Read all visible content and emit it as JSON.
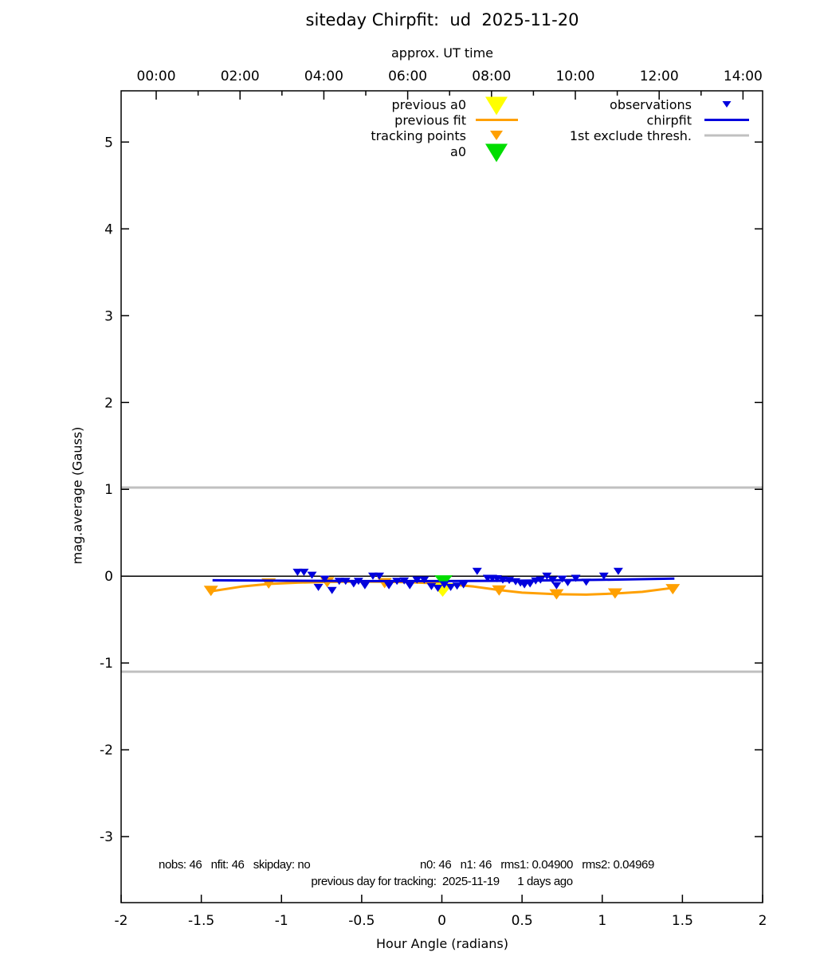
{
  "figure": {
    "title": "siteday Chirpfit:  ud  2025-11-20",
    "stats_line1_left": "nobs: 46   nfit: 46   skipday: no",
    "stats_line1_right": "n0: 46   n1: 46   rms1: 0.04900   rms2: 0.04969",
    "stats_line2": "previous day for tracking:  2025-11-19      1 days ago"
  },
  "chart_data": {
    "type": "scatter",
    "title": "siteday Chirpfit:  ud  2025-11-20",
    "xlabel": "Hour Angle (radians)",
    "ylabel": "mag.average (Gauss)",
    "x2label": "approx. UT time",
    "xlim": [
      -2,
      2
    ],
    "ylim": [
      -3.76,
      5.59
    ],
    "x2lim_hours": [
      -0.837,
      14.468
    ],
    "grid": false,
    "x_ticks": [
      {
        "v": -2,
        "label": "-2"
      },
      {
        "v": -1.5,
        "label": "-1.5"
      },
      {
        "v": -1,
        "label": "-1"
      },
      {
        "v": -0.5,
        "label": "-0.5"
      },
      {
        "v": 0,
        "label": "0"
      },
      {
        "v": 0.5,
        "label": "0.5"
      },
      {
        "v": 1,
        "label": "1"
      },
      {
        "v": 1.5,
        "label": "1.5"
      },
      {
        "v": 2,
        "label": "2"
      }
    ],
    "y_ticks": [
      {
        "v": -3,
        "label": "-3"
      },
      {
        "v": -2,
        "label": "-2"
      },
      {
        "v": -1,
        "label": "-1"
      },
      {
        "v": 0,
        "label": "0"
      },
      {
        "v": 1,
        "label": "1"
      },
      {
        "v": 2,
        "label": "2"
      },
      {
        "v": 3,
        "label": "3"
      },
      {
        "v": 4,
        "label": "4"
      },
      {
        "v": 5,
        "label": "5"
      }
    ],
    "x2_major_ticks": [
      {
        "h": 0,
        "label": "00:00"
      },
      {
        "h": 2,
        "label": "02:00"
      },
      {
        "h": 4,
        "label": "04:00"
      },
      {
        "h": 6,
        "label": "06:00"
      },
      {
        "h": 8,
        "label": "08:00"
      },
      {
        "h": 10,
        "label": "10:00"
      },
      {
        "h": 12,
        "label": "12:00"
      },
      {
        "h": 14,
        "label": "14:00"
      }
    ],
    "x2_minor_hours": [
      1,
      3,
      5,
      7,
      9,
      11,
      13
    ],
    "series": {
      "zero_line": {
        "color": "#000000",
        "value": 0
      },
      "exclude_thresholds": {
        "color": "#c0c0c0",
        "values": [
          1.02,
          -1.1
        ]
      },
      "previous_fit": {
        "color": "#ffa000",
        "points": [
          [
            -1.44,
            -0.175
          ],
          [
            -1.25,
            -0.12
          ],
          [
            -1.08,
            -0.09
          ],
          [
            -0.9,
            -0.075
          ],
          [
            -0.715,
            -0.066
          ],
          [
            -0.5,
            -0.063
          ],
          [
            -0.357,
            -0.065
          ],
          [
            -0.2,
            -0.07
          ],
          [
            0,
            -0.085
          ],
          [
            0.2,
            -0.12
          ],
          [
            0.357,
            -0.16
          ],
          [
            0.5,
            -0.19
          ],
          [
            0.715,
            -0.208
          ],
          [
            0.9,
            -0.212
          ],
          [
            1.08,
            -0.2
          ],
          [
            1.25,
            -0.18
          ],
          [
            1.44,
            -0.135
          ]
        ]
      },
      "tracking_points": {
        "color": "#ffa000",
        "points": [
          [
            -1.44,
            -0.17
          ],
          [
            -1.08,
            -0.085
          ],
          [
            -0.715,
            -0.07
          ],
          [
            -0.357,
            -0.08
          ],
          [
            0.357,
            -0.165
          ],
          [
            0.715,
            -0.21
          ],
          [
            1.08,
            -0.2
          ],
          [
            1.44,
            -0.15
          ]
        ]
      },
      "previous_a0": {
        "color": "#ffff00",
        "point": [
          0.005,
          -0.16
        ]
      },
      "a0": {
        "color": "#00dd00",
        "point": [
          0.01,
          -0.054
        ]
      },
      "chirpfit": {
        "color": "#0000dd",
        "points": [
          [
            -1.43,
            -0.047
          ],
          [
            -1.0,
            -0.052
          ],
          [
            -0.5,
            -0.056
          ],
          [
            0,
            -0.057
          ],
          [
            0.5,
            -0.052
          ],
          [
            1.0,
            -0.042
          ],
          [
            1.45,
            -0.028
          ]
        ]
      },
      "observations": {
        "color": "#0000dd",
        "points": [
          [
            -0.9,
            0.045
          ],
          [
            -0.86,
            0.045
          ],
          [
            -0.81,
            0.01
          ],
          [
            -0.77,
            -0.13
          ],
          [
            -0.73,
            -0.035
          ],
          [
            -0.685,
            -0.165
          ],
          [
            -0.64,
            -0.06
          ],
          [
            -0.6,
            -0.06
          ],
          [
            -0.55,
            -0.09
          ],
          [
            -0.52,
            -0.06
          ],
          [
            -0.48,
            -0.11
          ],
          [
            -0.43,
            0.0
          ],
          [
            -0.39,
            0.0
          ],
          [
            -0.33,
            -0.11
          ],
          [
            -0.28,
            -0.06
          ],
          [
            -0.235,
            -0.055
          ],
          [
            -0.2,
            -0.11
          ],
          [
            -0.155,
            -0.045
          ],
          [
            -0.11,
            -0.045
          ],
          [
            -0.065,
            -0.12
          ],
          [
            -0.025,
            -0.14
          ],
          [
            0.015,
            -0.1
          ],
          [
            0.055,
            -0.13
          ],
          [
            0.095,
            -0.115
          ],
          [
            0.135,
            -0.1
          ],
          [
            0.22,
            0.055
          ],
          [
            0.285,
            -0.025
          ],
          [
            0.315,
            -0.025
          ],
          [
            0.345,
            -0.03
          ],
          [
            0.38,
            -0.045
          ],
          [
            0.42,
            -0.05
          ],
          [
            0.46,
            -0.065
          ],
          [
            0.49,
            -0.08
          ],
          [
            0.515,
            -0.1
          ],
          [
            0.55,
            -0.09
          ],
          [
            0.585,
            -0.055
          ],
          [
            0.615,
            -0.045
          ],
          [
            0.655,
            0.0
          ],
          [
            0.69,
            -0.045
          ],
          [
            0.715,
            -0.11
          ],
          [
            0.75,
            -0.035
          ],
          [
            0.785,
            -0.075
          ],
          [
            0.835,
            -0.025
          ],
          [
            0.9,
            -0.07
          ],
          [
            1.01,
            0.0
          ],
          [
            1.1,
            0.055
          ]
        ]
      }
    },
    "legend": {
      "position": "top-inside",
      "left_column": [
        {
          "label": "previous a0",
          "marker": "triangle-large",
          "color": "#ffff00"
        },
        {
          "label": "previous fit",
          "marker": "line",
          "color": "#ffa000"
        },
        {
          "label": "tracking points",
          "marker": "triangle-medium",
          "color": "#ffa000"
        },
        {
          "label": "a0",
          "marker": "triangle-large",
          "color": "#00dd00"
        }
      ],
      "right_column": [
        {
          "label": "observations",
          "marker": "triangle-small",
          "color": "#0000dd"
        },
        {
          "label": "chirpfit",
          "marker": "line",
          "color": "#0000dd"
        },
        {
          "label": "1st exclude thresh.",
          "marker": "line",
          "color": "#c0c0c0"
        }
      ]
    }
  }
}
